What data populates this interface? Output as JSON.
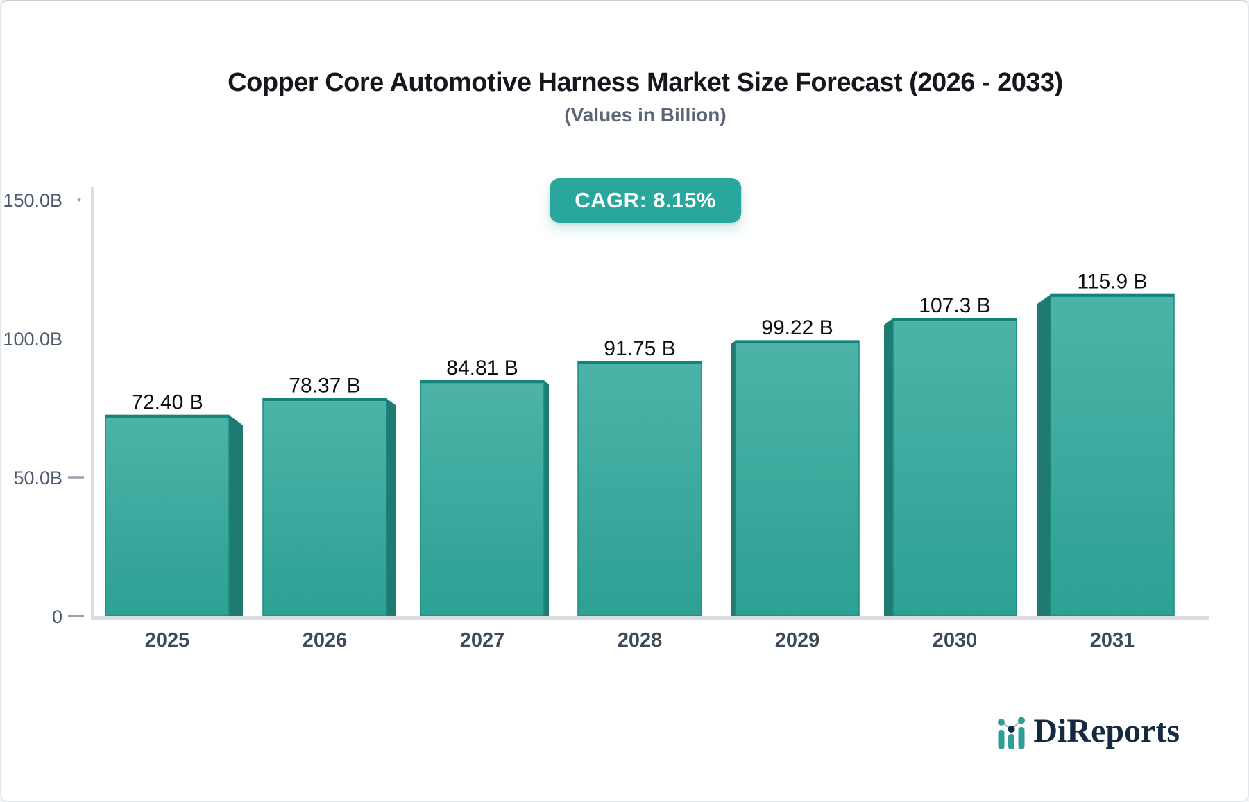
{
  "page": {
    "title": "Copper Core Automotive Harness Market Size Forecast (2026 - 2033)",
    "subtitle": "(Values in Billion)",
    "cagr_badge": "CAGR: 8.15%"
  },
  "chart_data": {
    "type": "bar",
    "title": "Copper Core Automotive Harness Market Size Forecast (2026 - 2033)",
    "subtitle": "(Values in Billion)",
    "annotation": "CAGR: 8.15%",
    "categories": [
      "2025",
      "2026",
      "2027",
      "2028",
      "2029",
      "2030",
      "2031"
    ],
    "values": [
      72.4,
      78.37,
      84.81,
      91.75,
      99.22,
      107.3,
      115.9
    ],
    "bar_labels": [
      "72.40 B",
      "78.37 B",
      "84.81 B",
      "91.75 B",
      "99.22 B",
      "107.3 B",
      "115.9 B"
    ],
    "unit": "Billion",
    "xlabel": "",
    "ylabel": "",
    "ylim": [
      0,
      150
    ],
    "y_ticks": [
      {
        "value": 150,
        "label": "150.0B",
        "marker": "dot"
      },
      {
        "value": 100,
        "label": "100.0B",
        "marker": "none"
      },
      {
        "value": 50,
        "label": "50.0B",
        "marker": "dash"
      },
      {
        "value": 0,
        "label": "0",
        "marker": "dash"
      }
    ],
    "grid": false,
    "legend_position": "none"
  },
  "colors": {
    "bar_face_top": "#4db3a8",
    "bar_face_bottom": "#2da094",
    "bar_face_stroke": "#1c8b81",
    "bar_top_border": "#13837a",
    "bar_side": "#1f7a72",
    "badge_bg": "#2aa79c",
    "badge_text": "#ffffff",
    "axis_line": "#d9dce2",
    "tick_mark": "#98a1ac",
    "y_tick_text": "#4d586c",
    "x_tick_text": "#3d4a5c",
    "value_text": "#0b0d0f",
    "title_text": "#14171c",
    "subtitle_text": "#5b6575",
    "logo_navy": "#152940",
    "logo_teal": "#2f9e95",
    "logo_line": "#8fc0bb"
  },
  "logo": {
    "text": "DiReports"
  }
}
